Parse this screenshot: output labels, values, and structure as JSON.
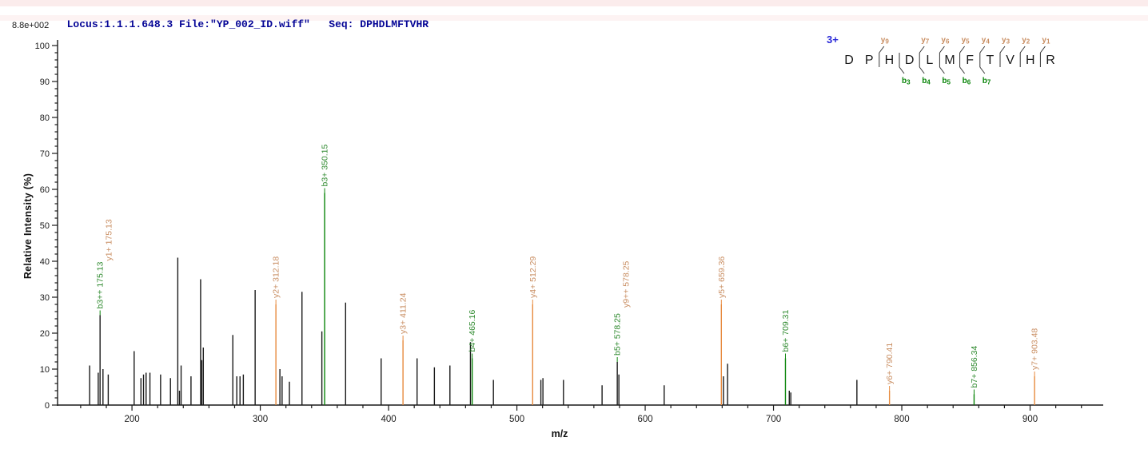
{
  "header": {
    "locus_line": "Locus:1.1.1.648.3 File:\"YP_002_ID.wiff\"   Seq: DPHDLMFTVHR",
    "max_intensity_label": "8.8e+002"
  },
  "colors": {
    "background": "#ffffff",
    "header_text": "#050596",
    "axis": "#1a1a1a",
    "peak_default": "#1a1a1a",
    "b_ion_line": "#0a850a",
    "b_ion_label": "#2f8a2f",
    "y_ion_line": "#e78a3e",
    "y_ion_label": "#c98e62",
    "charge_label": "#2a2ad8",
    "residue_text": "#1a1a1a"
  },
  "chart_data": {
    "type": "bar",
    "subtype": "ms2-mass-spectrum",
    "title": "",
    "xlabel": "m/z",
    "ylabel": "Relative  Intensity (%)",
    "x_axis": {
      "min": 142,
      "max": 957,
      "major_ticks": [
        200,
        300,
        400,
        500,
        600,
        700,
        800,
        900
      ],
      "minor_step": 20
    },
    "y_axis": {
      "min": 0,
      "max": 100,
      "major_ticks": [
        0,
        10,
        20,
        30,
        40,
        50,
        60,
        70,
        80,
        90,
        100
      ],
      "minor_step": 2
    },
    "grid": false,
    "legend": false,
    "peaks": [
      {
        "mz": 167.0,
        "i": 11
      },
      {
        "mz": 173.7,
        "i": 9
      },
      {
        "mz": 175.13,
        "i": 25,
        "labels": [
          {
            "text": "b3++ 175.13",
            "ion": "b"
          },
          {
            "text": "y1+ 175.13",
            "ion": "y"
          }
        ]
      },
      {
        "mz": 177.4,
        "i": 10
      },
      {
        "mz": 181.5,
        "i": 8.5
      },
      {
        "mz": 201.7,
        "i": 15
      },
      {
        "mz": 207.0,
        "i": 7.5
      },
      {
        "mz": 209.0,
        "i": 8.5
      },
      {
        "mz": 211.0,
        "i": 9
      },
      {
        "mz": 214.0,
        "i": 9
      },
      {
        "mz": 222.3,
        "i": 8.5
      },
      {
        "mz": 230.0,
        "i": 7.5
      },
      {
        "mz": 235.7,
        "i": 41
      },
      {
        "mz": 237.0,
        "i": 4
      },
      {
        "mz": 238.3,
        "i": 11
      },
      {
        "mz": 246.0,
        "i": 8
      },
      {
        "mz": 253.5,
        "i": 35
      },
      {
        "mz": 254.4,
        "i": 12.5
      },
      {
        "mz": 255.6,
        "i": 16
      },
      {
        "mz": 278.6,
        "i": 19.5
      },
      {
        "mz": 281.7,
        "i": 8
      },
      {
        "mz": 284.2,
        "i": 8
      },
      {
        "mz": 286.8,
        "i": 8.5
      },
      {
        "mz": 296.0,
        "i": 32
      },
      {
        "mz": 312.18,
        "i": 28,
        "ion": "y",
        "labels": [
          {
            "text": "y2+ 312.18",
            "ion": "y"
          }
        ]
      },
      {
        "mz": 315.3,
        "i": 10
      },
      {
        "mz": 317.0,
        "i": 8
      },
      {
        "mz": 322.7,
        "i": 6.5
      },
      {
        "mz": 332.5,
        "i": 31.5
      },
      {
        "mz": 348.0,
        "i": 20.5
      },
      {
        "mz": 350.15,
        "i": 59,
        "ion": "b",
        "labels": [
          {
            "text": "b3+ 350.15",
            "ion": "b"
          }
        ]
      },
      {
        "mz": 366.5,
        "i": 28.5
      },
      {
        "mz": 394.2,
        "i": 13
      },
      {
        "mz": 411.24,
        "i": 18,
        "ion": "y",
        "labels": [
          {
            "text": "y3+ 411.24",
            "ion": "y"
          }
        ]
      },
      {
        "mz": 422.2,
        "i": 13
      },
      {
        "mz": 435.7,
        "i": 10.5
      },
      {
        "mz": 447.8,
        "i": 11
      },
      {
        "mz": 463.8,
        "i": 17.5
      },
      {
        "mz": 465.16,
        "i": 13,
        "ion": "b",
        "labels": [
          {
            "text": "b4+ 465.16",
            "ion": "b"
          }
        ]
      },
      {
        "mz": 481.7,
        "i": 7
      },
      {
        "mz": 512.29,
        "i": 28,
        "ion": "y",
        "labels": [
          {
            "text": "y4+ 512.29",
            "ion": "y"
          }
        ]
      },
      {
        "mz": 518.7,
        "i": 7
      },
      {
        "mz": 520.3,
        "i": 7.5
      },
      {
        "mz": 536.3,
        "i": 7
      },
      {
        "mz": 566.4,
        "i": 5.5
      },
      {
        "mz": 578.25,
        "i": 12,
        "labels": [
          {
            "text": "b5+ 578.25",
            "ion": "b"
          },
          {
            "text": "y9++ 578.25",
            "ion": "y"
          }
        ]
      },
      {
        "mz": 579.5,
        "i": 8.5
      },
      {
        "mz": 614.8,
        "i": 5.5
      },
      {
        "mz": 659.36,
        "i": 28,
        "ion": "y",
        "labels": [
          {
            "text": "y5+ 659.36",
            "ion": "y"
          }
        ]
      },
      {
        "mz": 661.0,
        "i": 8
      },
      {
        "mz": 664.2,
        "i": 11.5
      },
      {
        "mz": 709.31,
        "i": 13,
        "ion": "b",
        "labels": [
          {
            "text": "b6+ 709.31",
            "ion": "b"
          }
        ]
      },
      {
        "mz": 712.3,
        "i": 4
      },
      {
        "mz": 713.5,
        "i": 3.5
      },
      {
        "mz": 765.0,
        "i": 7
      },
      {
        "mz": 790.41,
        "i": 4,
        "ion": "y",
        "labels": [
          {
            "text": "y6+ 790.41",
            "ion": "y"
          }
        ]
      },
      {
        "mz": 856.34,
        "i": 3,
        "ion": "b",
        "labels": [
          {
            "text": "b7+ 856.34",
            "ion": "b"
          }
        ]
      },
      {
        "mz": 903.48,
        "i": 8,
        "ion": "y",
        "labels": [
          {
            "text": "y7+ 903.48",
            "ion": "y"
          }
        ]
      }
    ]
  },
  "sequence_annotation": {
    "charge": "3+",
    "residues": [
      "D",
      "P",
      "H",
      "D",
      "L",
      "M",
      "F",
      "T",
      "V",
      "H",
      "R"
    ],
    "cleavages": [
      {
        "after": 1,
        "y": {
          "ion": "y",
          "num": "9"
        }
      },
      {
        "after": 2,
        "b": {
          "ion": "b",
          "num": "3"
        }
      },
      {
        "after": 3,
        "y": {
          "ion": "y",
          "num": "7"
        },
        "b": {
          "ion": "b",
          "num": "4"
        }
      },
      {
        "after": 4,
        "y": {
          "ion": "y",
          "num": "6"
        },
        "b": {
          "ion": "b",
          "num": "5"
        }
      },
      {
        "after": 5,
        "y": {
          "ion": "y",
          "num": "5"
        },
        "b": {
          "ion": "b",
          "num": "6"
        }
      },
      {
        "after": 6,
        "y": {
          "ion": "y",
          "num": "4"
        },
        "b": {
          "ion": "b",
          "num": "7"
        }
      },
      {
        "after": 7,
        "y": {
          "ion": "y",
          "num": "3"
        }
      },
      {
        "after": 8,
        "y": {
          "ion": "y",
          "num": "2"
        }
      },
      {
        "after": 9,
        "y": {
          "ion": "y",
          "num": "1"
        }
      }
    ]
  }
}
